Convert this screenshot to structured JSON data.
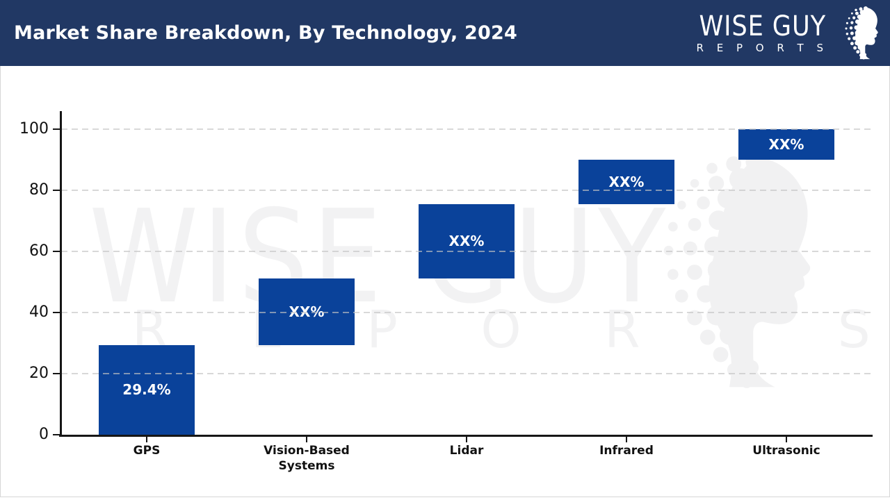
{
  "header": {
    "title": "Market Share Breakdown, By Technology, 2024",
    "background": "#213864",
    "logo": {
      "name": "WISE GUY",
      "subname": "R E P O R T S",
      "head_icon": "dotted-head-profile"
    }
  },
  "watermark": {
    "name": "WISE GUY",
    "subname": "R E P O R T S"
  },
  "chart_data": {
    "type": "bar",
    "subtype": "waterfall",
    "title": "Market Share Breakdown, By Technology, 2024",
    "categories": [
      "GPS",
      "Vision-Based Systems",
      "Lidar",
      "Infrared",
      "Ultrasonic"
    ],
    "categories_display": [
      [
        "GPS"
      ],
      [
        "Vision-Based",
        "Systems"
      ],
      [
        "Lidar"
      ],
      [
        "Infrared"
      ],
      [
        "Ultrasonic"
      ]
    ],
    "segments": [
      {
        "category": "GPS",
        "start": 0,
        "end": 29.4,
        "label": "29.4%"
      },
      {
        "category": "Vision-Based Systems",
        "start": 29.4,
        "end": 51.1,
        "label": "XX%"
      },
      {
        "category": "Lidar",
        "start": 51.1,
        "end": 75.5,
        "label": "XX%"
      },
      {
        "category": "Infrared",
        "start": 75.5,
        "end": 90,
        "label": "XX%"
      },
      {
        "category": "Ultrasonic",
        "start": 90,
        "end": 100,
        "label": "XX%"
      }
    ],
    "y_ticks": [
      0,
      20,
      40,
      60,
      80,
      100
    ],
    "ylim": [
      0,
      108
    ],
    "xlabel": "",
    "ylabel": "",
    "grid": {
      "axis": "y",
      "style": "dashed",
      "color": "#d9d9d9",
      "drawn_over_bars": true
    },
    "legend": "none",
    "bar_color": "#0A429A",
    "bar_label_color": "#ffffff",
    "axis_color": "#161616"
  }
}
